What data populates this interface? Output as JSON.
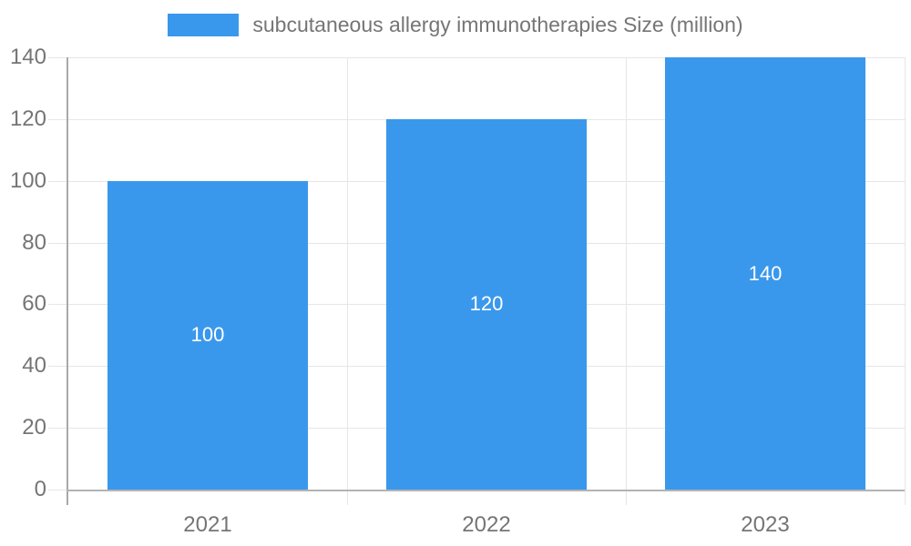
{
  "chart_data": {
    "type": "bar",
    "title": "",
    "legend": "subcutaneous allergy immunotherapies Size (million)",
    "legend_position": "top",
    "categories": [
      "2021",
      "2022",
      "2023"
    ],
    "values": [
      100,
      120,
      140
    ],
    "xlabel": "",
    "ylabel": "",
    "ylim": [
      0,
      140
    ],
    "ytick_step": 20,
    "grid": true,
    "bar_color": "#3a98ec",
    "bar_label_color": "#ffffff",
    "axis_text_color": "#757575",
    "grid_color": "#e6e6e6",
    "axis_line_color": "#a9a9a9",
    "baseline_color": "#b3b3b3"
  }
}
